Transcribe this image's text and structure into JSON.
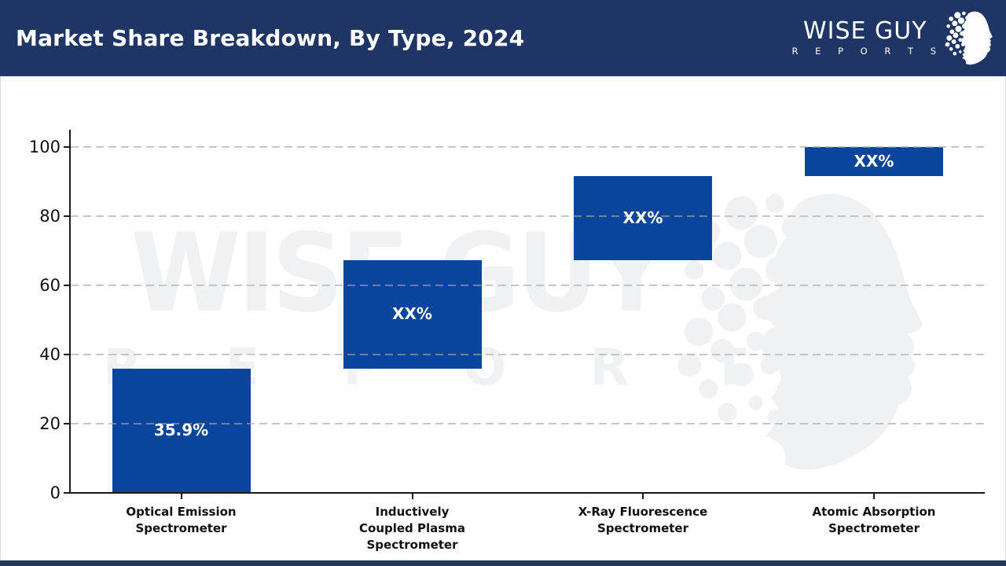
{
  "header": {
    "title": "Market Share Breakdown, By Type, 2024",
    "logo": {
      "name": "WISE GUY",
      "tagline": "R E P O R T S"
    }
  },
  "watermark": {
    "line1": "WISE GUY",
    "line2": "R E P O R T S"
  },
  "colors": {
    "header_bg": "#1f3565",
    "footer_bg": "#1f3565",
    "bar": "#09459a",
    "grid": "#a8a8a8",
    "axis": "#1a1a1a",
    "bar_label": "#ffffff",
    "watermark": "#f0f1f3"
  },
  "chart_data": {
    "type": "bar",
    "subtype": "waterfall",
    "title": "Market Share Breakdown, By Type, 2024",
    "categories": [
      [
        "Optical Emission",
        "Spectrometer"
      ],
      [
        "Inductively",
        "Coupled Plasma",
        "Spectrometer"
      ],
      [
        "X-Ray Fluorescence",
        "Spectrometer"
      ],
      [
        "Atomic Absorption",
        "Spectrometer"
      ]
    ],
    "segments": [
      {
        "base": 0,
        "top": 35.9,
        "label": "35.9%"
      },
      {
        "base": 35.9,
        "top": 67.2,
        "label": "XX%"
      },
      {
        "base": 67.2,
        "top": 91.5,
        "label": "XX%"
      },
      {
        "base": 91.5,
        "top": 100,
        "label": "XX%"
      }
    ],
    "xlabel": "",
    "ylabel": "",
    "ylim": [
      0,
      104
    ],
    "yticks": [
      0,
      20,
      40,
      60,
      80,
      100
    ],
    "grid": "horizontal-dashed",
    "legend": "none"
  }
}
